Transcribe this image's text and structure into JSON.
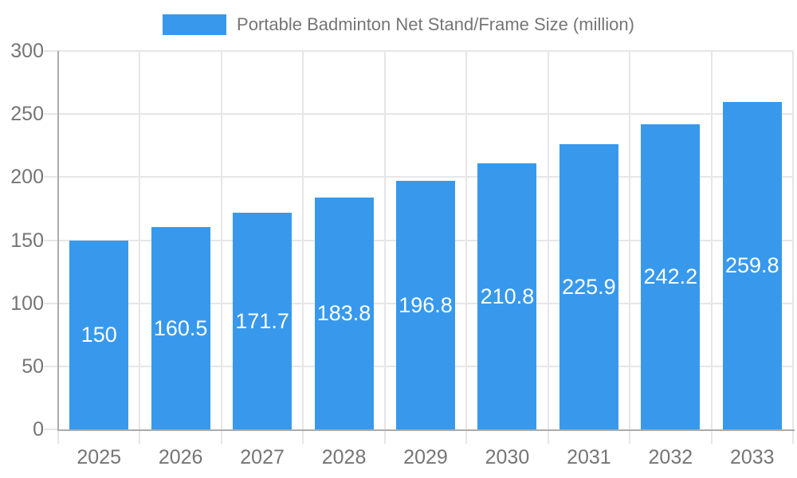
{
  "legend": {
    "label": "Portable Badminton Net Stand/Frame Size (million)"
  },
  "chart_data": {
    "type": "bar",
    "title": "Portable Badminton Net Stand/Frame Size (million)",
    "categories": [
      "2025",
      "2026",
      "2027",
      "2028",
      "2029",
      "2030",
      "2031",
      "2032",
      "2033"
    ],
    "values": [
      150,
      160.5,
      171.7,
      183.8,
      196.8,
      210.8,
      225.9,
      242.2,
      259.8
    ],
    "value_labels": [
      "150",
      "160.5",
      "171.7",
      "183.8",
      "196.8",
      "210.8",
      "225.9",
      "242.2",
      "259.8"
    ],
    "xlabel": "",
    "ylabel": "",
    "ylim": [
      0,
      300
    ],
    "yticks": [
      0,
      50,
      100,
      150,
      200,
      250,
      300
    ],
    "grid": true,
    "legend_position": "top-center",
    "colors": {
      "bar": "#3899EC",
      "value_label": "#FFFFFF",
      "axis_text": "#757575",
      "axis_line": "#ABABAB",
      "gridline": "#E6E6E6"
    }
  }
}
